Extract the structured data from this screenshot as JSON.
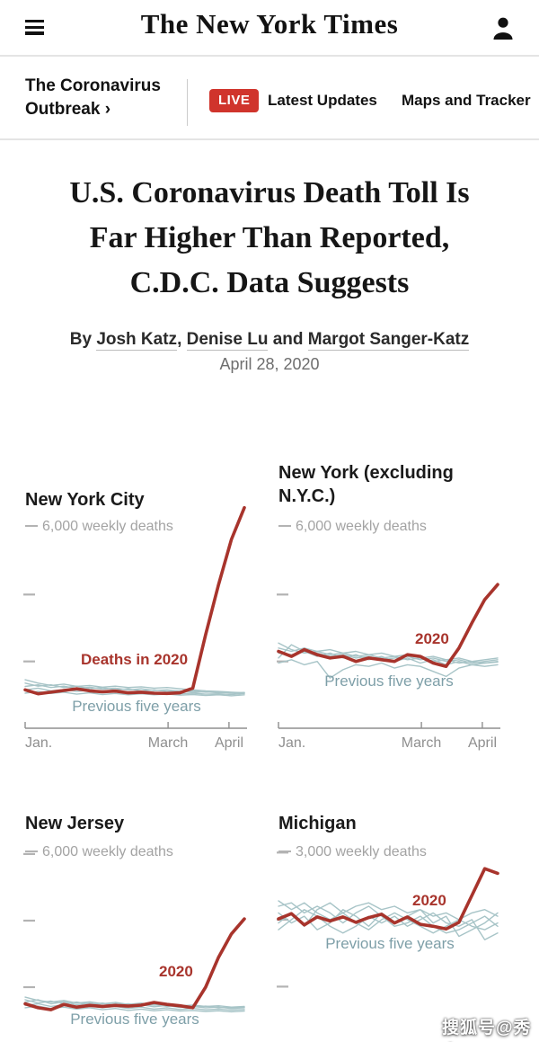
{
  "colors": {
    "deaths_2020": "#a8342c",
    "prev_years": "#a7c4c7",
    "prev_label": "#7e9fa8",
    "live_red": "#d0342c",
    "axis": "#8f8f8f",
    "tick": "#b3b3b3"
  },
  "header": {
    "menu_icon": "hamburger",
    "logo": "The New York Times",
    "account_icon": "person-silhouette"
  },
  "topic_bar": {
    "title": "The Coronavirus Outbreak",
    "chevron": "›",
    "live_badge": "LIVE",
    "link_updates": "Latest Updates",
    "link_tracker": "Maps and Tracker"
  },
  "article": {
    "headline_lines": [
      "U.S. Coronavirus Death Toll Is",
      "Far Higher Than Reported,",
      "C.D.C. Data Suggests"
    ],
    "byline": {
      "prefix": "By ",
      "authors": [
        "Josh Katz",
        "Denise Lu",
        "Margot Sanger-Katz"
      ],
      "sep1": ", ",
      "sep2": " and "
    },
    "date": "April 28, 2020"
  },
  "watermark": "搜狐号@秀点",
  "chart_data": [
    {
      "type": "line",
      "title": "New York City",
      "y_axis_label": "6,000 weekly deaths",
      "ylabel": "weekly deaths",
      "ylim": [
        0,
        6860
      ],
      "yticks": [
        2000,
        4000
      ],
      "ytick_top_labeled": 6000,
      "show_x_axis": true,
      "x_ticks": [
        {
          "label": "Jan.",
          "pos": 0
        },
        {
          "label": "March",
          "pos": 0.652
        },
        {
          "label": "April",
          "pos": 0.93
        }
      ],
      "label_2020": "Deaths in 2020",
      "label_prev": "Previous five years",
      "series": {
        "deaths_2020": [
          1150,
          1030,
          1080,
          1130,
          1180,
          1120,
          1090,
          1110,
          1060,
          1080,
          1050,
          1040,
          1060,
          1200,
          2800,
          4300,
          5650,
          6600
        ],
        "previous_years": [
          [
            1450,
            1350,
            1280,
            1320,
            1250,
            1280,
            1230,
            1260,
            1220,
            1240,
            1200,
            1220,
            1180,
            1150,
            1120,
            1100,
            1080,
            1060
          ],
          [
            1250,
            1300,
            1220,
            1260,
            1190,
            1230,
            1170,
            1200,
            1150,
            1180,
            1130,
            1150,
            1110,
            1120,
            1080,
            1090,
            1050,
            1070
          ],
          [
            1150,
            1200,
            1120,
            1160,
            1100,
            1140,
            1080,
            1120,
            1060,
            1090,
            1040,
            1070,
            1030,
            1050,
            1020,
            1030,
            1010,
            1040
          ],
          [
            1350,
            1260,
            1300,
            1220,
            1260,
            1180,
            1220,
            1150,
            1180,
            1120,
            1150,
            1100,
            1120,
            1080,
            1090,
            1060,
            1070,
            1050
          ],
          [
            1050,
            1100,
            1040,
            1080,
            1020,
            1060,
            1010,
            1040,
            1000,
            1030,
            1000,
            1020,
            990,
            1010,
            980,
            1000,
            970,
            1000
          ]
        ]
      }
    },
    {
      "type": "line",
      "title": "New York (excluding N.Y.C.)",
      "y_axis_label": "6,000 weekly deaths",
      "ylabel": "weekly deaths",
      "ylim": [
        0,
        6860
      ],
      "yticks": [
        2000,
        4000
      ],
      "ytick_top_labeled": 6000,
      "show_x_axis": true,
      "x_ticks": [
        {
          "label": "Jan.",
          "pos": 0
        },
        {
          "label": "March",
          "pos": 0.652
        },
        {
          "label": "April",
          "pos": 0.93
        }
      ],
      "label_2020": "2020",
      "label_prev": "Previous five years",
      "series": {
        "deaths_2020": [
          2300,
          2150,
          2350,
          2200,
          2100,
          2150,
          2000,
          2100,
          2050,
          2000,
          2200,
          2150,
          1950,
          1850,
          2400,
          3150,
          3850,
          4300
        ],
        "previous_years": [
          [
            2550,
            2350,
            2250,
            2300,
            2200,
            2250,
            2150,
            2200,
            2100,
            2150,
            2050,
            2100,
            2000,
            2050,
            1950,
            2000,
            1950,
            2000
          ],
          [
            2100,
            2500,
            2300,
            2150,
            2250,
            2100,
            2200,
            2050,
            2150,
            2000,
            2100,
            1950,
            2050,
            1900,
            2000,
            1900,
            1950,
            1980
          ],
          [
            1950,
            2050,
            1900,
            2000,
            1500,
            1750,
            1900,
            1850,
            1950,
            1800,
            1900,
            1850,
            1700,
            1550,
            1800,
            1900,
            1850,
            1900
          ],
          [
            2250,
            2200,
            2300,
            2250,
            2150,
            2200,
            2100,
            2150,
            2050,
            2100,
            2150,
            2050,
            2100,
            2000,
            2050,
            1950,
            2000,
            2050
          ],
          [
            2400,
            2300,
            2400,
            2300,
            2350,
            2250,
            2300,
            2200,
            2250,
            2150,
            2200,
            2100,
            2150,
            2050,
            2100,
            2000,
            2050,
            2100
          ]
        ]
      }
    },
    {
      "type": "line",
      "title": "New Jersey",
      "y_axis_label": "6,000 weekly deaths",
      "ylabel": "weekly deaths",
      "ylim": [
        0,
        6890
      ],
      "yticks": [
        2000,
        4000,
        6000
      ],
      "ytick_top_labeled": 6000,
      "show_x_axis": false,
      "x_ticks": [],
      "label_2020": "2020",
      "label_prev": "Previous five years",
      "series": {
        "deaths_2020": [
          1500,
          1380,
          1320,
          1480,
          1400,
          1450,
          1420,
          1450,
          1430,
          1460,
          1540,
          1480,
          1440,
          1380,
          2000,
          2900,
          3600,
          4050
        ],
        "previous_years": [
          [
            1700,
            1600,
            1550,
            1600,
            1520,
            1560,
            1500,
            1540,
            1480,
            1520,
            1460,
            1500,
            1440,
            1460,
            1420,
            1440,
            1400,
            1420
          ],
          [
            1550,
            1620,
            1500,
            1560,
            1470,
            1520,
            1450,
            1500,
            1430,
            1470,
            1410,
            1450,
            1390,
            1420,
            1380,
            1400,
            1360,
            1380
          ],
          [
            1450,
            1500,
            1420,
            1470,
            1400,
            1440,
            1380,
            1420,
            1360,
            1400,
            1340,
            1380,
            1330,
            1360,
            1320,
            1340,
            1310,
            1330
          ],
          [
            1620,
            1520,
            1580,
            1500,
            1550,
            1480,
            1520,
            1460,
            1500,
            1440,
            1480,
            1420,
            1450,
            1400,
            1430,
            1380,
            1400,
            1390
          ],
          [
            1380,
            1430,
            1360,
            1400,
            1340,
            1380,
            1320,
            1360,
            1300,
            1340,
            1290,
            1320,
            1280,
            1300,
            1270,
            1290,
            1260,
            1280
          ]
        ]
      }
    },
    {
      "type": "line",
      "title": "Michigan",
      "y_axis_label": "3,000 weekly deaths",
      "ylabel": "weekly deaths",
      "ylim": [
        0,
        3420
      ],
      "yticks": [
        1000,
        2000,
        3000
      ],
      "ytick_top_labeled": 3000,
      "show_x_axis": false,
      "x_ticks": [],
      "label_2020": "2020",
      "label_prev": "Previous five years",
      "series": {
        "deaths_2020": [
          2010,
          2090,
          1920,
          2040,
          1980,
          2040,
          1960,
          2030,
          2080,
          1950,
          2040,
          1930,
          1900,
          1860,
          1960,
          2360,
          2760,
          2690
        ],
        "previous_years": [
          [
            2280,
            2150,
            2250,
            2100,
            2000,
            2100,
            2200,
            2250,
            2150,
            2200,
            2100,
            2150,
            2050,
            2100,
            2000,
            2100,
            2150,
            2050
          ],
          [
            1950,
            2100,
            1900,
            2150,
            2250,
            2100,
            1950,
            1850,
            2000,
            2100,
            2000,
            1900,
            1800,
            1900,
            2000,
            1900,
            1850,
            1950
          ],
          [
            2100,
            1950,
            2050,
            1850,
            1950,
            2150,
            2050,
            1900,
            2100,
            1950,
            2050,
            2150,
            1950,
            2050,
            1750,
            1850,
            1950,
            2100
          ],
          [
            1850,
            2000,
            2150,
            2050,
            1900,
            1800,
            1900,
            2050,
            1950,
            2050,
            1900,
            2000,
            2100,
            1950,
            1900,
            2000,
            1700,
            1800
          ],
          [
            2200,
            2250,
            2100,
            2200,
            2100,
            1950,
            2100,
            2200,
            2050,
            1900,
            1950,
            2050,
            1900,
            1800,
            1850,
            1950,
            2050,
            1900
          ]
        ]
      }
    }
  ]
}
